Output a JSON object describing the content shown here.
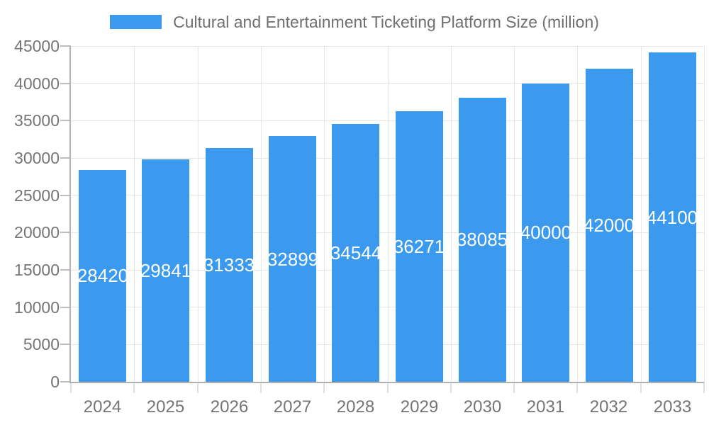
{
  "chart_data": {
    "type": "bar",
    "title": "Cultural and Entertainment Ticketing Platform Size (million)",
    "categories": [
      "2024",
      "2025",
      "2026",
      "2027",
      "2028",
      "2029",
      "2030",
      "2031",
      "2032",
      "2033"
    ],
    "values": [
      28420,
      29841,
      31333,
      32899,
      34544,
      36271,
      38085,
      40000,
      42000,
      44100
    ],
    "xlabel": "",
    "ylabel": "",
    "ylim": [
      0,
      45000
    ],
    "ytick_step": 5000,
    "yticks": [
      0,
      5000,
      10000,
      15000,
      20000,
      25000,
      30000,
      35000,
      40000,
      45000
    ],
    "grid": true,
    "legend_position": "top",
    "value_label_position": "inside-middle"
  },
  "colors": {
    "bar": "#3B9AEE",
    "background": "#FFFFFF",
    "axis_line": "#B0B0B0",
    "gridline": "#E6E6E6",
    "tick": "#BDBDBD",
    "x_tick": "#E0E0E0",
    "axis_label": "#757575",
    "value_label": "#FFFFFF",
    "legend_text": "#707070"
  }
}
